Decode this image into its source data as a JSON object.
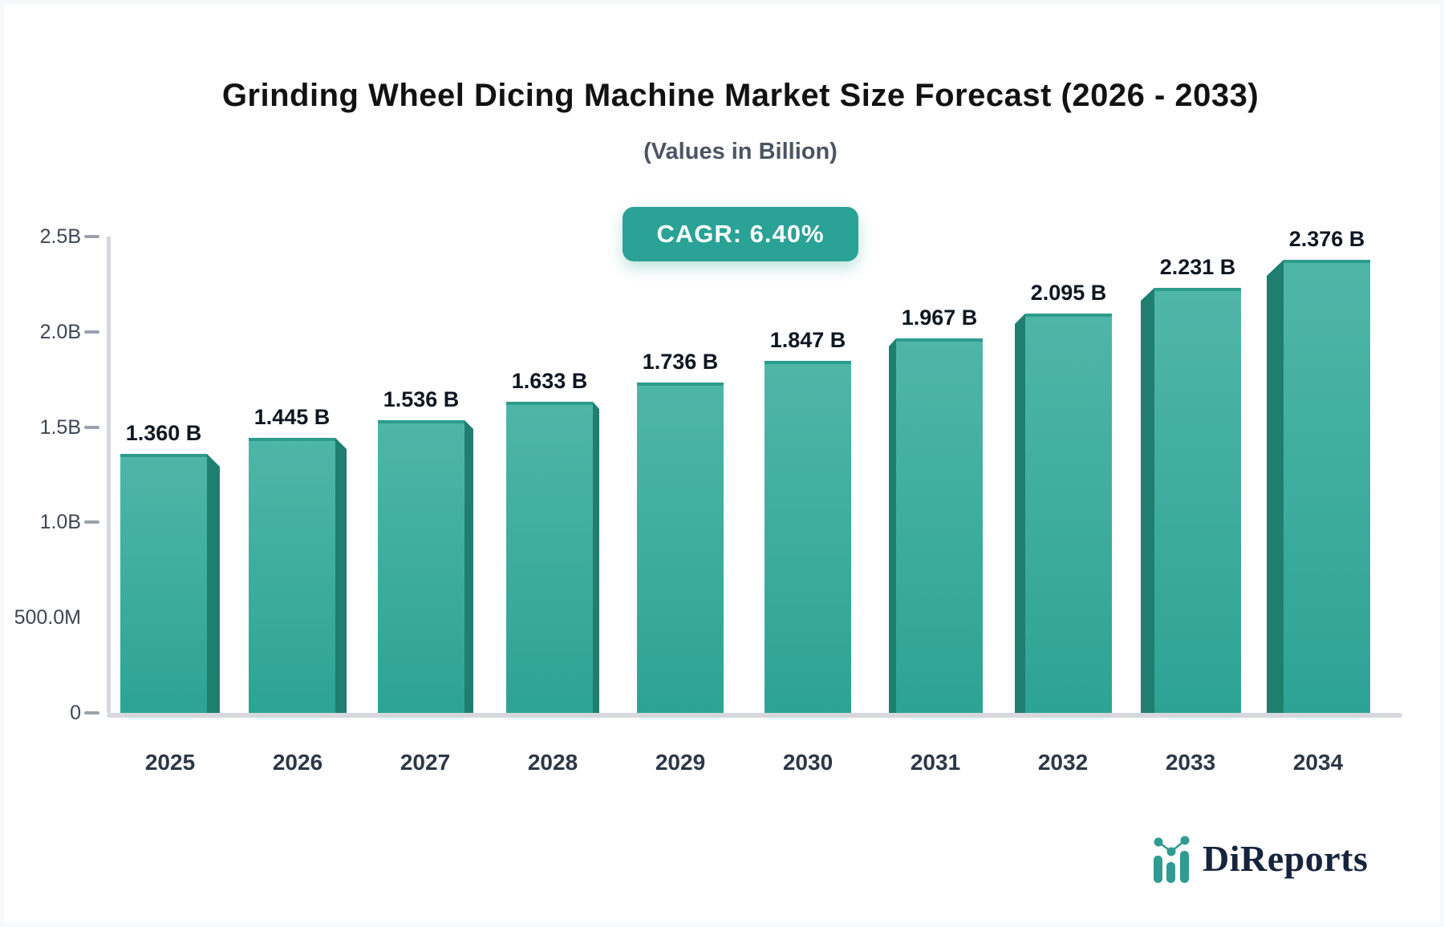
{
  "title": "Grinding Wheel Dicing Machine Market Size Forecast (2026 - 2033)",
  "subtitle": "(Values in Billion)",
  "badge": {
    "label": "CAGR: 6.40%"
  },
  "logo": {
    "icon": "mini-bar-chart-with-trendline-icon",
    "text": "DiReports"
  },
  "colors": {
    "bar_face_top": "#4fb6a7",
    "bar_face_bottom": "#2da395",
    "bar_top_edge": "#2c9c8e",
    "bar_side": "#1f7e6f",
    "badge_bg": "#2aa296",
    "badge_text": "#ffffff",
    "axis_line": "#d6d8de",
    "tick_dash": "#9ba1ab",
    "y_label": "#3d4654",
    "x_label": "#2c3747",
    "value_label": "#0e1621",
    "title": "#121212",
    "subtitle": "#4a5462",
    "logo_navy": "#16243e",
    "logo_teal": "#2f9b93",
    "background": "#ffffff"
  },
  "chart_data": {
    "type": "bar",
    "title": "Grinding Wheel Dicing Machine Market Size Forecast (2026 - 2033)",
    "subtitle": "(Values in Billion)",
    "annotation": "CAGR: 6.40%",
    "xlabel": "",
    "ylabel": "",
    "categories": [
      "2025",
      "2026",
      "2027",
      "2028",
      "2029",
      "2030",
      "2031",
      "2032",
      "2033",
      "2034"
    ],
    "values": [
      1.36,
      1.445,
      1.536,
      1.633,
      1.736,
      1.847,
      1.967,
      2.095,
      2.231,
      2.376
    ],
    "value_labels": [
      "1.360 B",
      "1.445 B",
      "1.536 B",
      "1.633 B",
      "1.736 B",
      "1.847 B",
      "1.967 B",
      "2.095 B",
      "2.231 B",
      "2.376 B"
    ],
    "ylim": [
      0,
      2.5
    ],
    "yticks": [
      {
        "label": "2.5B",
        "value": 2.5,
        "dash": true
      },
      {
        "label": "2.0B",
        "value": 2.0,
        "dash": true
      },
      {
        "label": "1.5B",
        "value": 1.5,
        "dash": true
      },
      {
        "label": "1.0B",
        "value": 1.0,
        "dash": true
      },
      {
        "label": "500.0M",
        "value": 0.5,
        "dash": false
      },
      {
        "label": "0",
        "value": 0.0,
        "dash": true
      }
    ],
    "grid": false,
    "legend": false,
    "bar_style": "3d-perspective-teal"
  }
}
